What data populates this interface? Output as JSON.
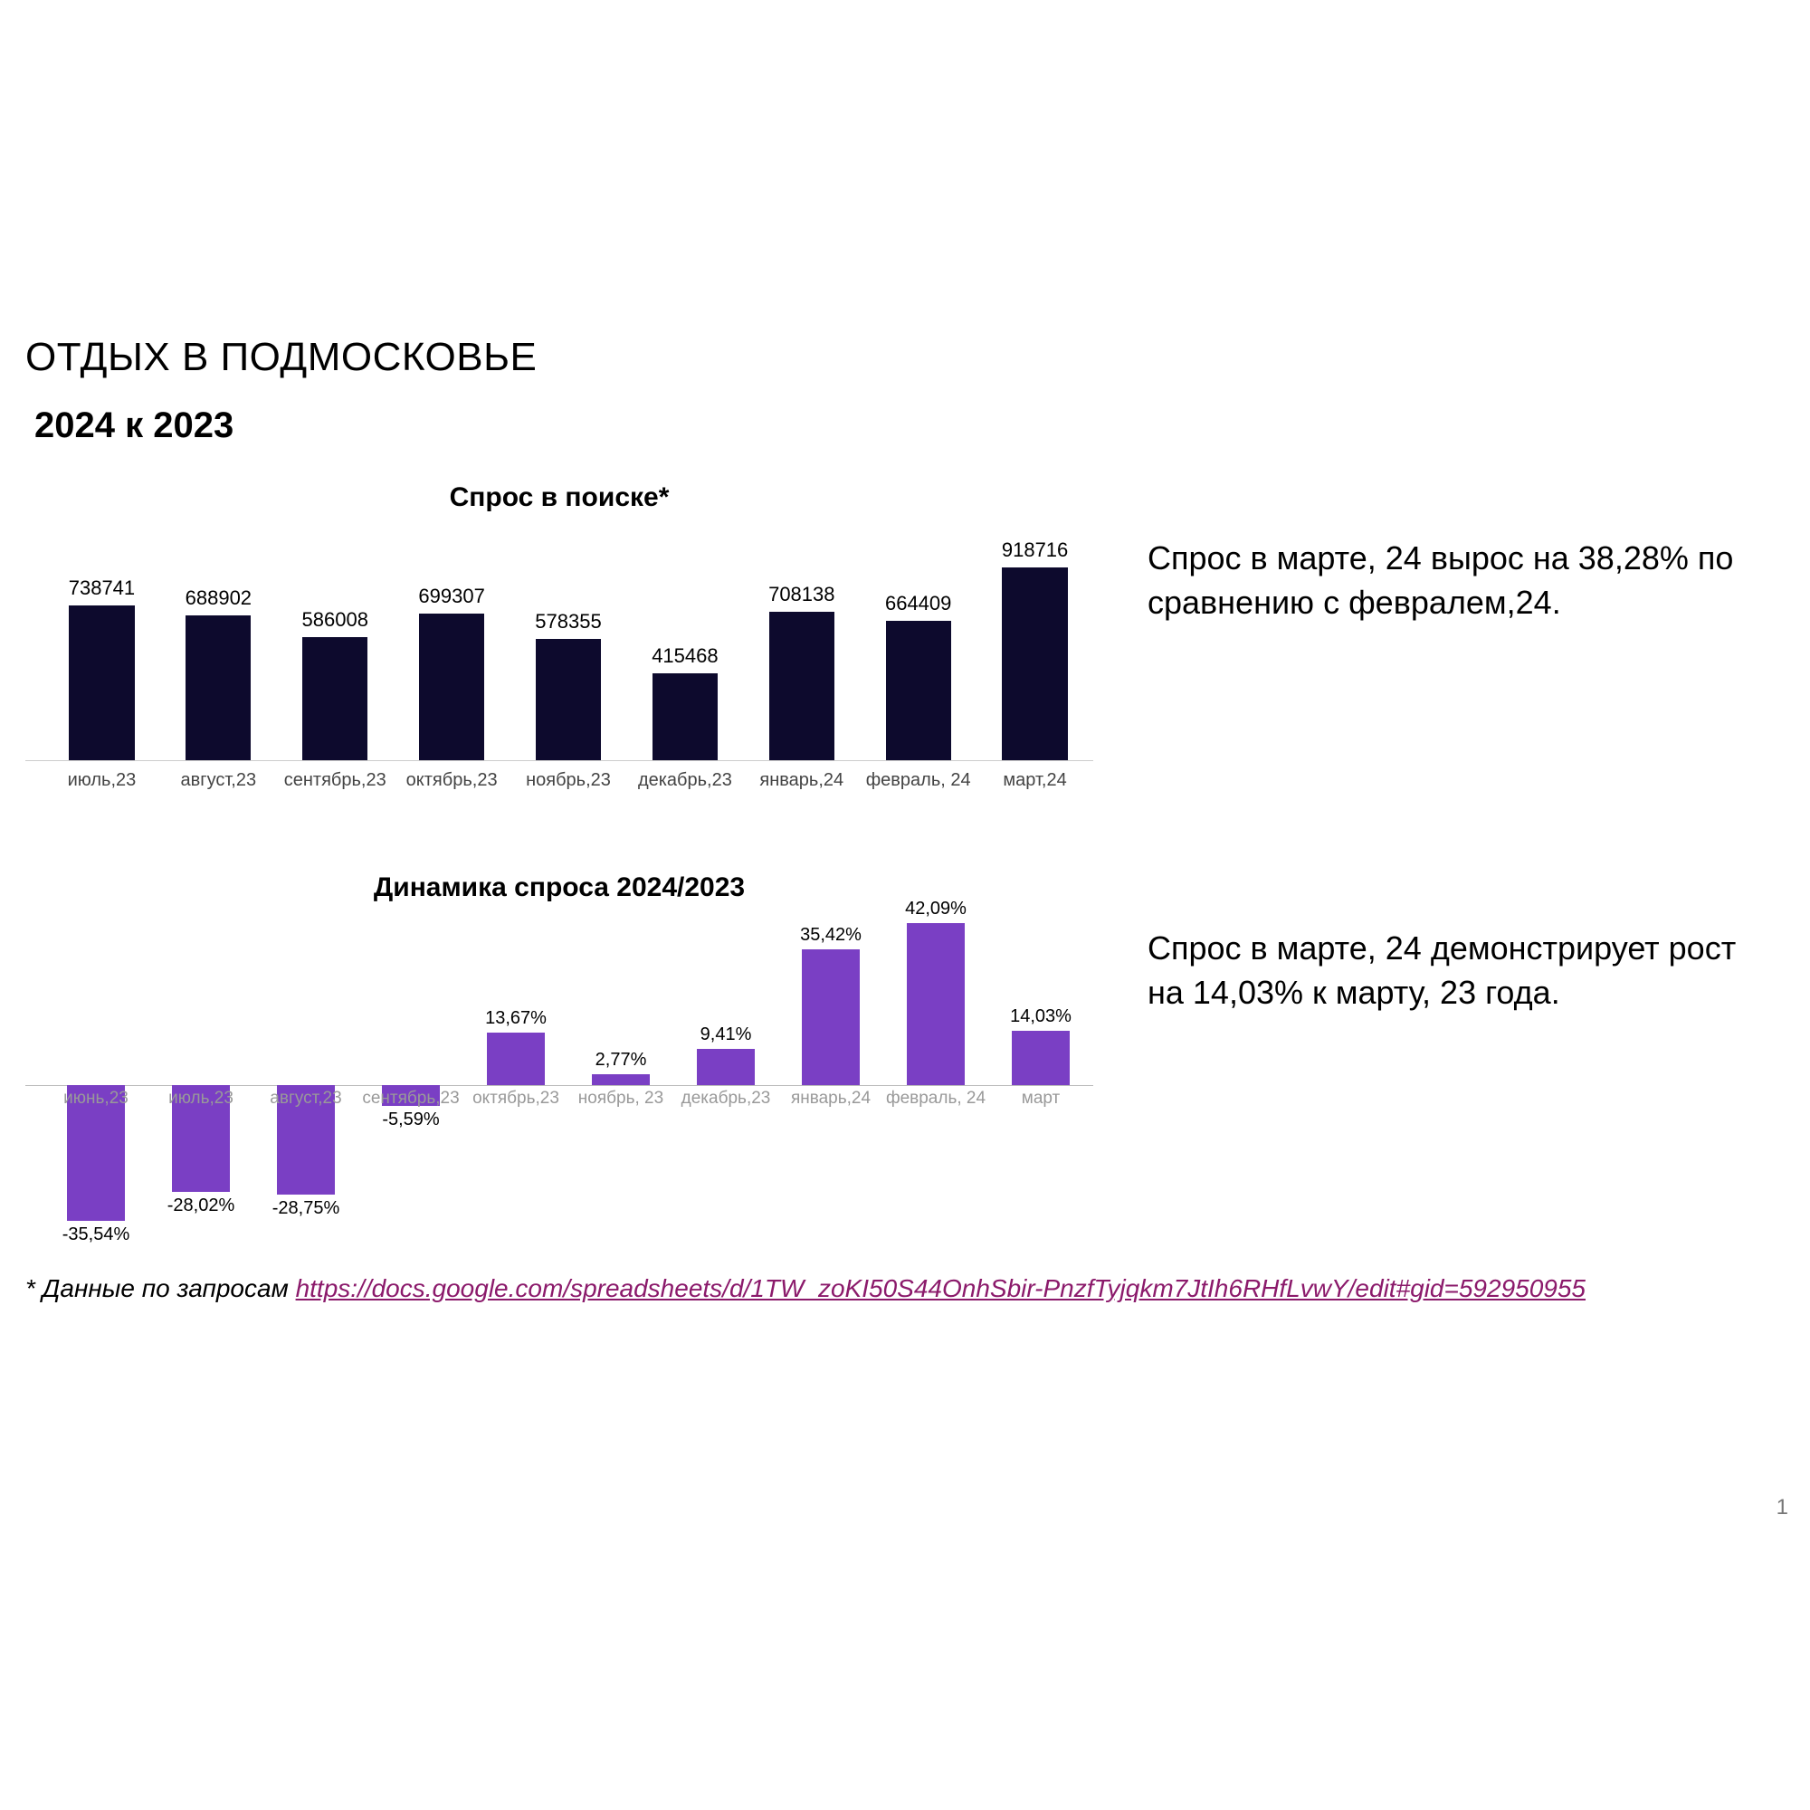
{
  "title": "ОТДЫХ В ПОДМОСКОВЬЕ",
  "subtitle": "2024 к 2023",
  "page_number": "1",
  "colors": {
    "bar_dark": "#0d0a2d",
    "bar_purple": "#7a3fc4",
    "background": "#ffffff",
    "text": "#000000",
    "link": "#8b1a6b",
    "axis_line": "#cccccc",
    "muted_label": "#999999"
  },
  "chart1": {
    "type": "bar",
    "title": "Спрос в поиске*",
    "ylim_max": 950000,
    "bar_color": "#0d0a2d",
    "label_fontsize": 20,
    "value_fontsize": 22,
    "title_fontsize": 30,
    "categories": [
      "июль,23",
      "август,23",
      "сентябрь,23",
      "октябрь,23",
      "ноябрь,23",
      "декабрь,23",
      "январь,24",
      "февраль, 24",
      "март,24"
    ],
    "values": [
      738741,
      688902,
      586008,
      699307,
      578355,
      415468,
      708138,
      664409,
      918716
    ],
    "value_labels": [
      "738741",
      "688902",
      "586008",
      "699307",
      "578355",
      "415468",
      "708138",
      "664409",
      "918716"
    ]
  },
  "annotation1": "Спрос в марте, 24 вырос на 38,28% по сравнению с февралем,24.",
  "chart2": {
    "type": "bar",
    "title": "Динамика спроса 2024/2023",
    "ylim_min": -40,
    "ylim_max": 45,
    "zero_line_color": "#bbbbbb",
    "bar_color": "#7a3fc4",
    "label_fontsize": 19,
    "value_fontsize": 20,
    "title_fontsize": 30,
    "categories": [
      "июнь,23",
      "июль,23",
      "август,23",
      "сентябрь,23",
      "октябрь,23",
      "ноябрь, 23",
      "декабрь,23",
      "январь,24",
      "февраль, 24",
      "март"
    ],
    "values": [
      -35.54,
      -28.02,
      -28.75,
      -5.59,
      13.67,
      2.77,
      9.41,
      35.42,
      42.09,
      14.03
    ],
    "value_labels": [
      "-35,54%",
      "-28,02%",
      "-28,75%",
      "-5,59%",
      "13,67%",
      "2,77%",
      "9,41%",
      "35,42%",
      "42,09%",
      "14,03%"
    ]
  },
  "annotation2": "Спрос в марте, 24 демонстрирует рост на 14,03% к марту, 23 года.",
  "footnote_prefix": "* Данные по запросам ",
  "footnote_link_text": "https://docs.google.com/spreadsheets/d/1TW_zoKI50S44OnhSbir-PnzfTyjqkm7JtIh6RHfLvwY/edit#gid=592950955"
}
